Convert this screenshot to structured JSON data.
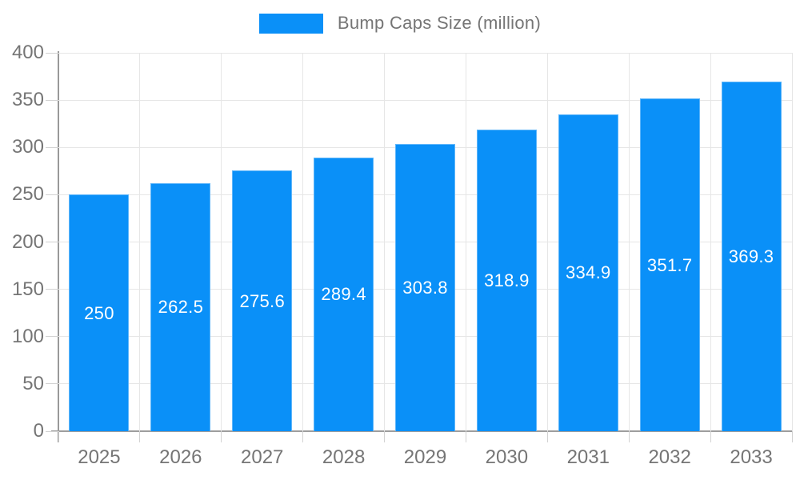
{
  "legend": {
    "label": "Bump Caps Size (million)"
  },
  "chart_data": {
    "type": "bar",
    "title": "",
    "series_name": "Bump Caps Size (million)",
    "categories": [
      "2025",
      "2026",
      "2027",
      "2028",
      "2029",
      "2030",
      "2031",
      "2032",
      "2033"
    ],
    "values": [
      250,
      262.5,
      275.6,
      289.4,
      303.8,
      318.9,
      334.9,
      351.7,
      369.3
    ],
    "value_labels": [
      "250",
      "262.5",
      "275.6",
      "289.4",
      "303.8",
      "318.9",
      "334.9",
      "351.7",
      "369.3"
    ],
    "xlabel": "",
    "ylabel": "",
    "ylim": [
      0,
      400
    ],
    "yticks": [
      0,
      50,
      100,
      150,
      200,
      250,
      300,
      350,
      400
    ],
    "ytick_labels": [
      "0",
      "50",
      "100",
      "150",
      "200",
      "250",
      "300",
      "350",
      "400"
    ],
    "grid": true,
    "legend_position": "top",
    "bar_label_position": "center",
    "colors": {
      "bar": "#0a90f8",
      "grid": "#e6e6e6",
      "tick": "#d2d2d2",
      "axis": "#999999",
      "tick_label": "#757575",
      "value_label": "#ffffff"
    }
  }
}
